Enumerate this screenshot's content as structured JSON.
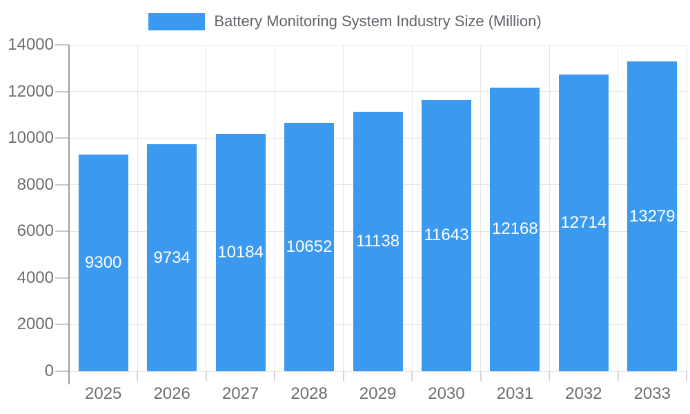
{
  "chart_data": {
    "type": "bar",
    "title": "Battery Monitoring System Industry Size (Million)",
    "xlabel": "",
    "ylabel": "",
    "categories": [
      "2025",
      "2026",
      "2027",
      "2028",
      "2029",
      "2030",
      "2031",
      "2032",
      "2033"
    ],
    "values": [
      9300,
      9734,
      10184,
      10652,
      11138,
      11643,
      12168,
      12714,
      13279
    ],
    "value_labels": [
      "9300",
      "9734",
      "10184",
      "10652",
      "11138",
      "11643",
      "12168",
      "12714",
      "13279"
    ],
    "ylim": [
      0,
      14000
    ],
    "yticks": [
      "0",
      "2000",
      "4000",
      "6000",
      "8000",
      "10000",
      "12000",
      "14000"
    ],
    "ytick_step": 2000,
    "grid": true,
    "legend_position": "top",
    "legend_entries": [
      "Battery Monitoring System Industry Size (Million)"
    ],
    "colors": {
      "bar": "#3b9af0",
      "value_label": "#ffffff",
      "axis_text": "#6e6e6e",
      "legend_text": "#5f6368",
      "gridline": "#e6e6e6",
      "axis_line": "#9e9e9e",
      "tick": "#c8c8c8",
      "background": "#ffffff"
    }
  }
}
